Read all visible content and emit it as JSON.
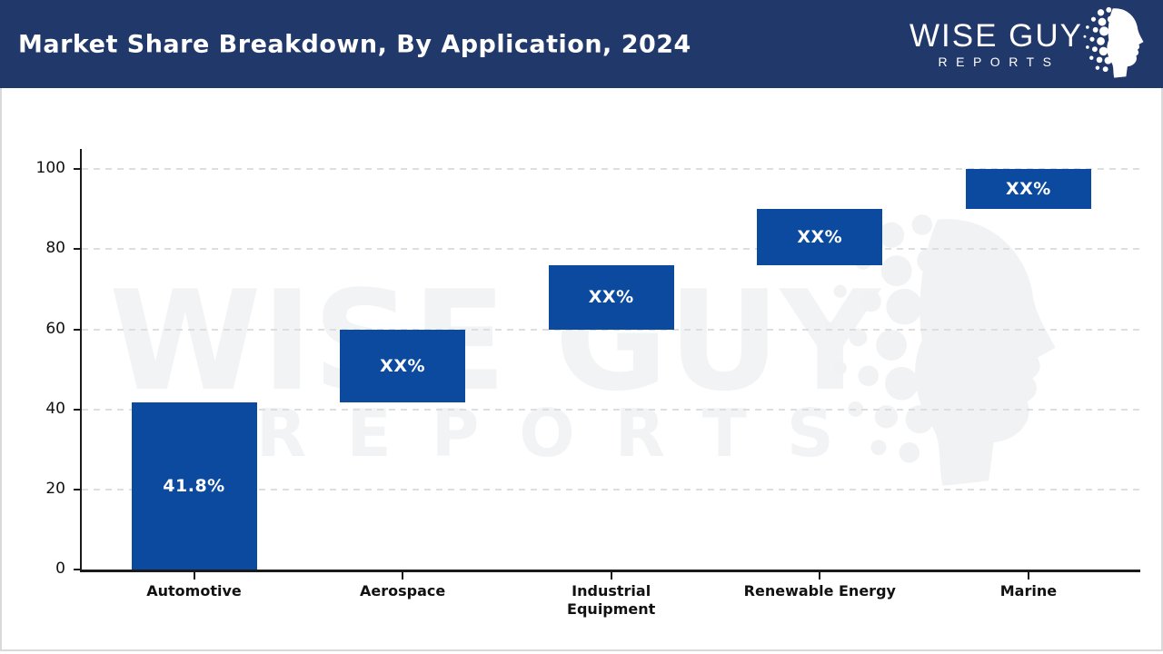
{
  "header": {
    "title": "Market Share Breakdown, By Application, 2024",
    "logo": {
      "line1": "WISE GUY",
      "line2": "REPORTS"
    }
  },
  "watermark": {
    "line1": "WISE GUY",
    "line2": "REPORTS"
  },
  "chart_data": {
    "type": "bar",
    "subtype": "waterfall",
    "title": "Market Share Breakdown, By Application, 2024",
    "categories": [
      "Automotive",
      "Aerospace",
      "Industrial\nEquipment",
      "Renewable Energy",
      "Marine"
    ],
    "segments": [
      {
        "category": "Automotive",
        "start": 0,
        "end": 41.8,
        "label": "41.8%"
      },
      {
        "category": "Aerospace",
        "start": 41.8,
        "end": 60,
        "label": "XX%"
      },
      {
        "category": "Industrial Equipment",
        "start": 60,
        "end": 76,
        "label": "XX%"
      },
      {
        "category": "Renewable Energy",
        "start": 76,
        "end": 90,
        "label": "XX%"
      },
      {
        "category": "Marine",
        "start": 90,
        "end": 100,
        "label": "XX%"
      }
    ],
    "y_ticks": [
      0,
      20,
      40,
      60,
      80,
      100
    ],
    "ylim": [
      0,
      105
    ],
    "xlabel": "",
    "ylabel": "",
    "grid": "horizontal-dashed",
    "legend": "none",
    "bar_color": "#0B4A9E",
    "bar_label_color": "#ffffff"
  },
  "colors": {
    "header_bg": "#21386B",
    "bar": "#0B4A9E",
    "grid": "#dedede",
    "axis": "#1a1a1a",
    "watermark": "#f2f3f5",
    "frame_border": "#d9d9d9"
  }
}
